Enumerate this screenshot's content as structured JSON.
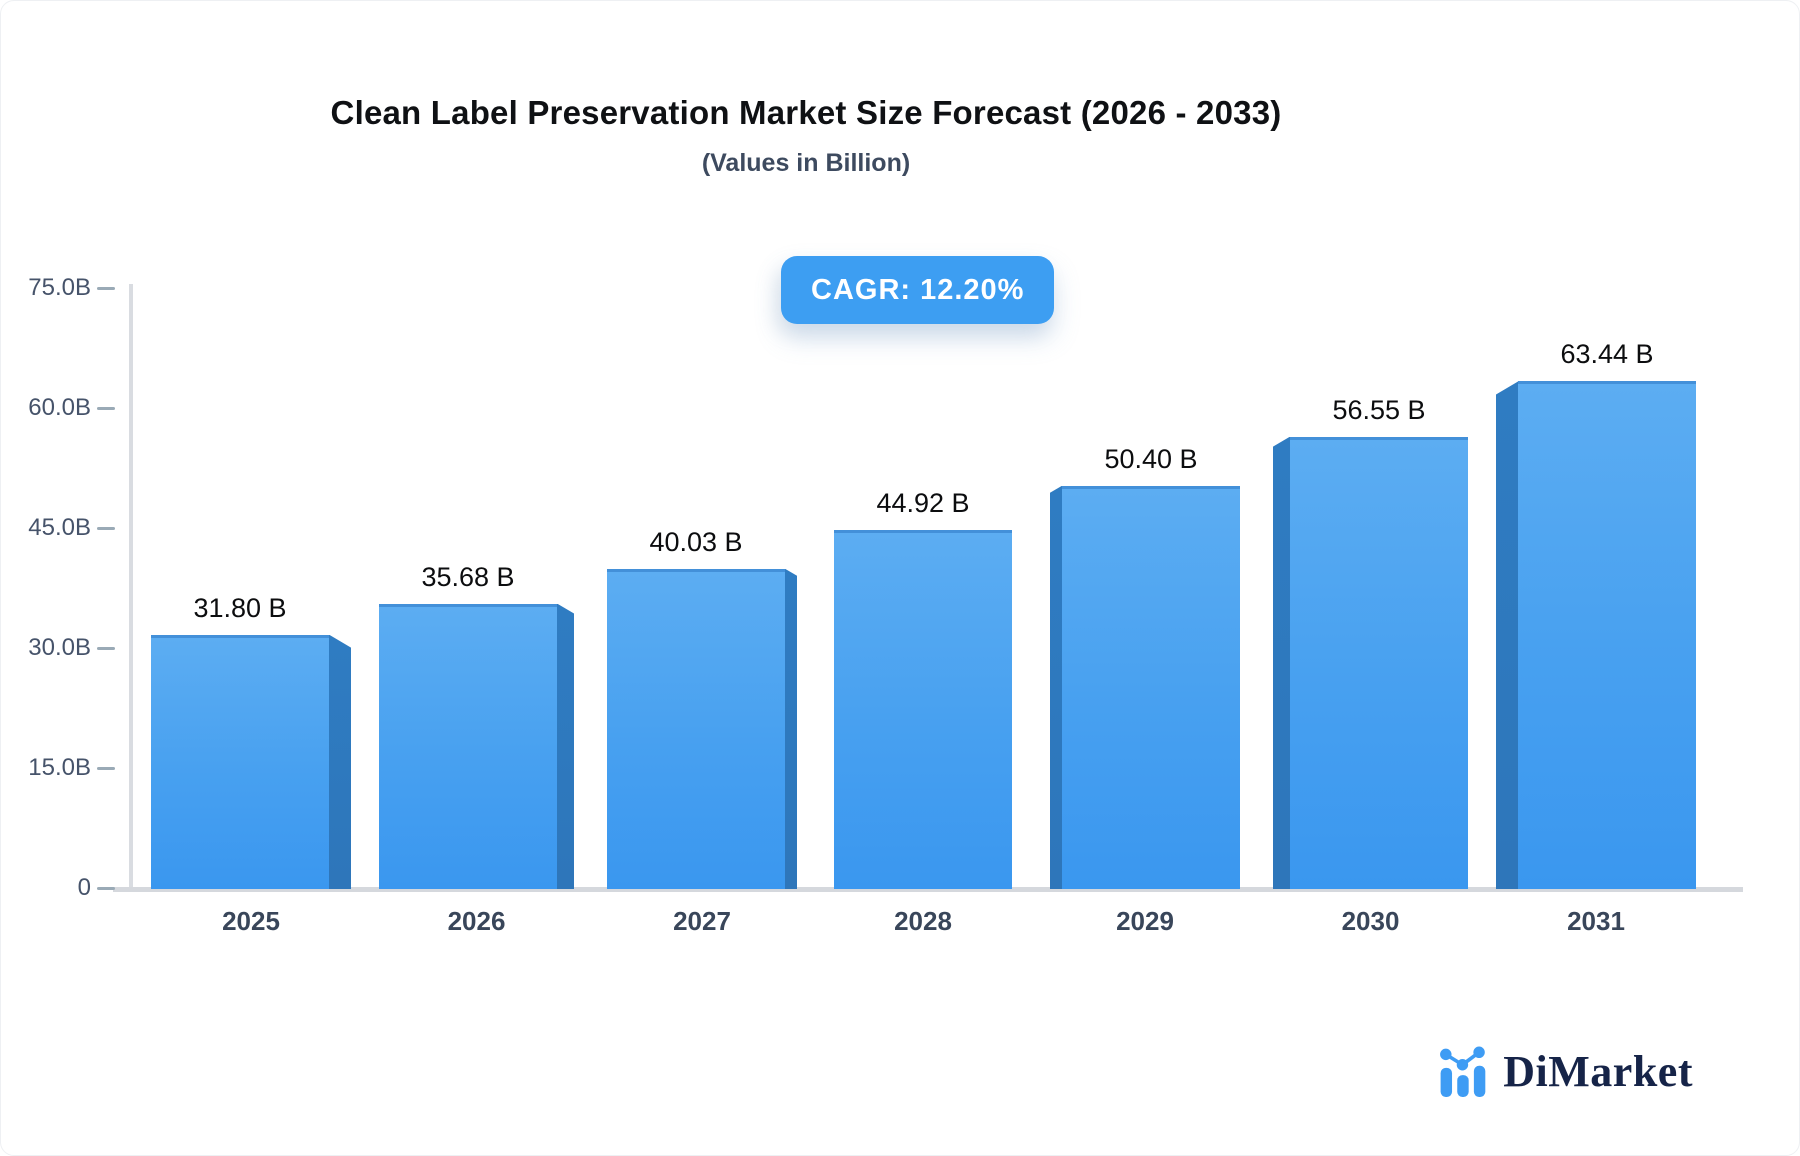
{
  "header": {
    "title": "Clean Label Preservation Market Size Forecast (2026 - 2033)",
    "subtitle": "(Values in Billion)",
    "cagr_label": "CAGR: 12.20%"
  },
  "chart_data": {
    "type": "bar",
    "title": "Clean Label Preservation Market Size Forecast (2026 - 2033)",
    "subtitle": "(Values in Billion)",
    "unit": "Billion",
    "cagr": "12.20%",
    "categories": [
      "2025",
      "2026",
      "2027",
      "2028",
      "2029",
      "2030",
      "2031"
    ],
    "values": [
      31.8,
      35.68,
      40.03,
      44.92,
      50.4,
      56.55,
      63.44
    ],
    "value_labels": [
      "31.80 B",
      "35.68 B",
      "40.03 B",
      "44.92 B",
      "50.40 B",
      "56.55 B",
      "63.44 B"
    ],
    "yticks": [
      {
        "label": "75.0B",
        "value": 75
      },
      {
        "label": "60.0B",
        "value": 60
      },
      {
        "label": "45.0B",
        "value": 45
      },
      {
        "label": "30.0B",
        "value": 30
      },
      {
        "label": "15.0B",
        "value": 15
      },
      {
        "label": "0",
        "value": 0
      }
    ],
    "ylim": [
      0,
      75
    ],
    "xlabel": "",
    "ylabel": "",
    "grid": false,
    "legend": false,
    "style_3d": true
  },
  "colors": {
    "bar_top": "#5cadf2",
    "bar_bottom": "#3a97ef",
    "bar_side": "#2e76ba",
    "badge_bg": "#3d9ef2",
    "axis_line": "#d5d8dd",
    "tick_text": "#46536a",
    "x_label_text": "#39465a",
    "value_text": "#0c0d0f",
    "title_text": "#0f1114",
    "logo_navy": "#162448",
    "logo_blue": "#3e9cf4"
  },
  "logo": {
    "name": "DiMarket",
    "icon": "bar-line-chart-icon"
  }
}
